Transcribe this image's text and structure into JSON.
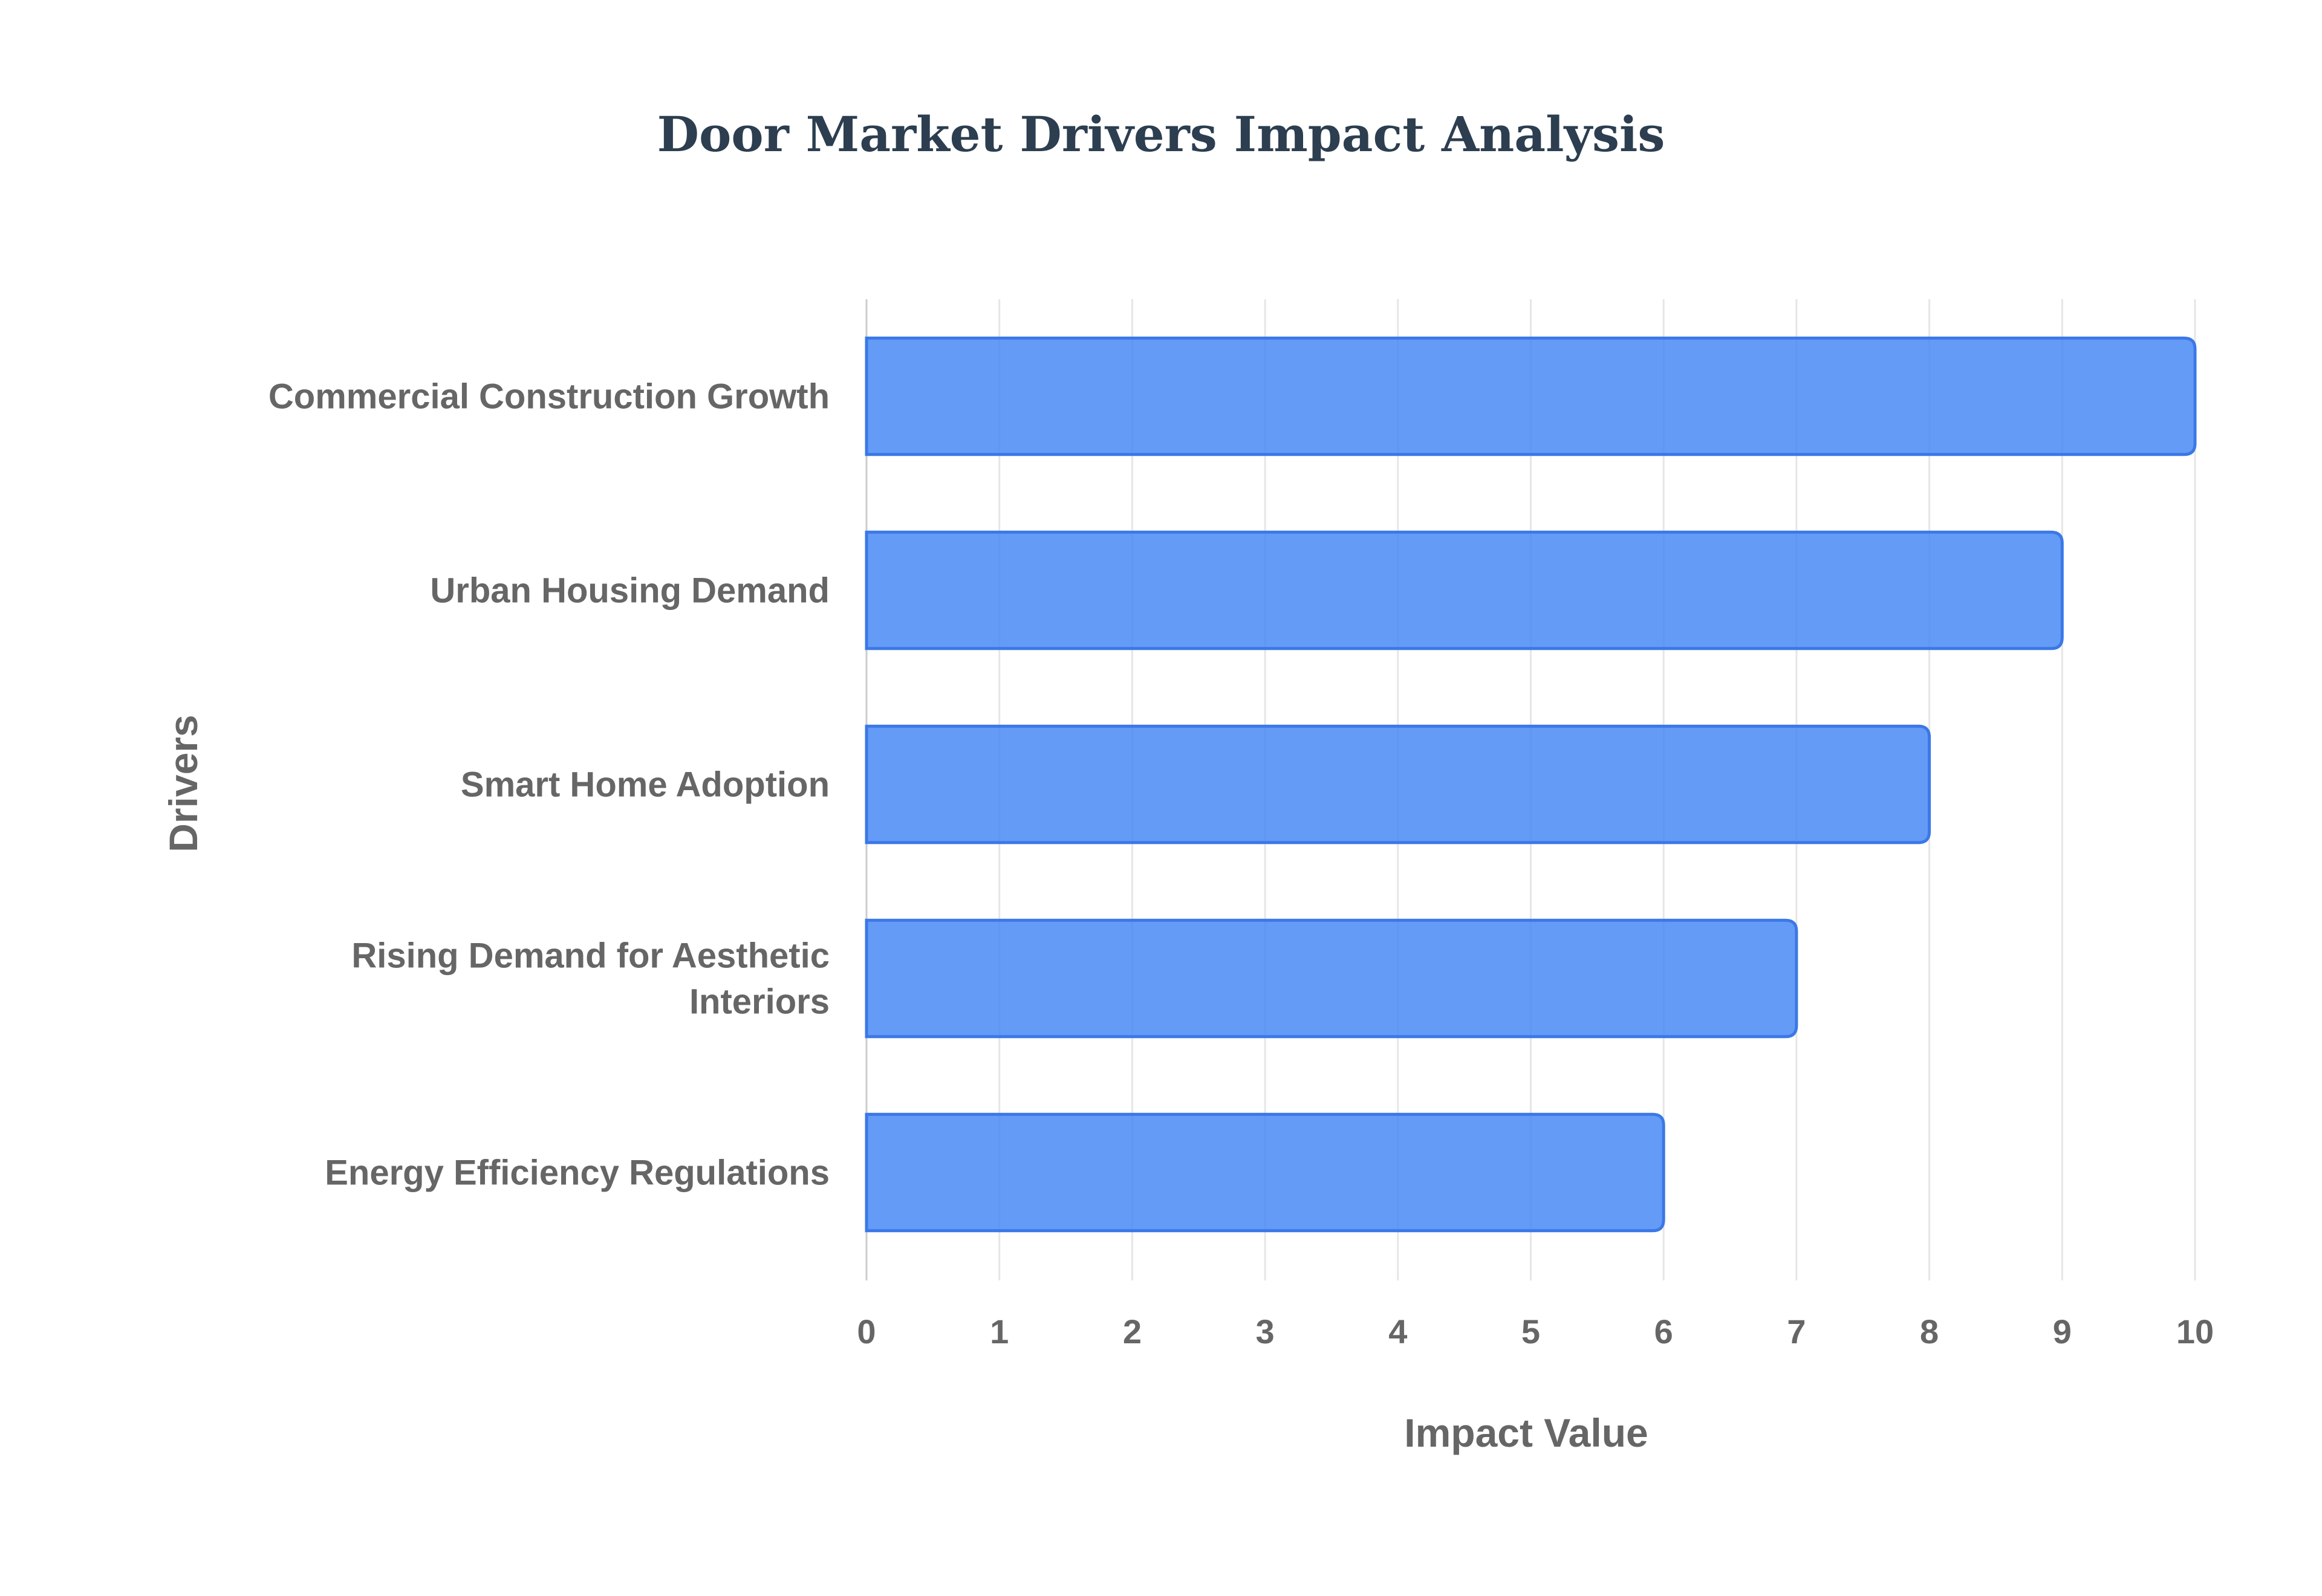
{
  "colors": {
    "bar_fill": "#4285f4",
    "bar_stroke": "#3b78e7",
    "grid": "#e6e6e6",
    "text": "#666666",
    "title": "#2c3e50"
  },
  "chart_data": {
    "type": "bar",
    "orientation": "horizontal",
    "title": "Door Market Drivers Impact Analysis",
    "xlabel": "Impact Value",
    "ylabel": "Drivers",
    "xlim": [
      0,
      10
    ],
    "x_ticks": [
      "0",
      "1",
      "2",
      "3",
      "4",
      "5",
      "6",
      "7",
      "8",
      "9",
      "10"
    ],
    "grid": true,
    "legend": "none",
    "categories": [
      "Commercial Construction Growth",
      "Urban Housing Demand",
      "Smart Home Adoption",
      "Rising Demand for Aesthetic Interiors",
      "Energy Efficiency Regulations"
    ],
    "values": [
      10,
      9,
      8,
      7,
      6
    ]
  }
}
